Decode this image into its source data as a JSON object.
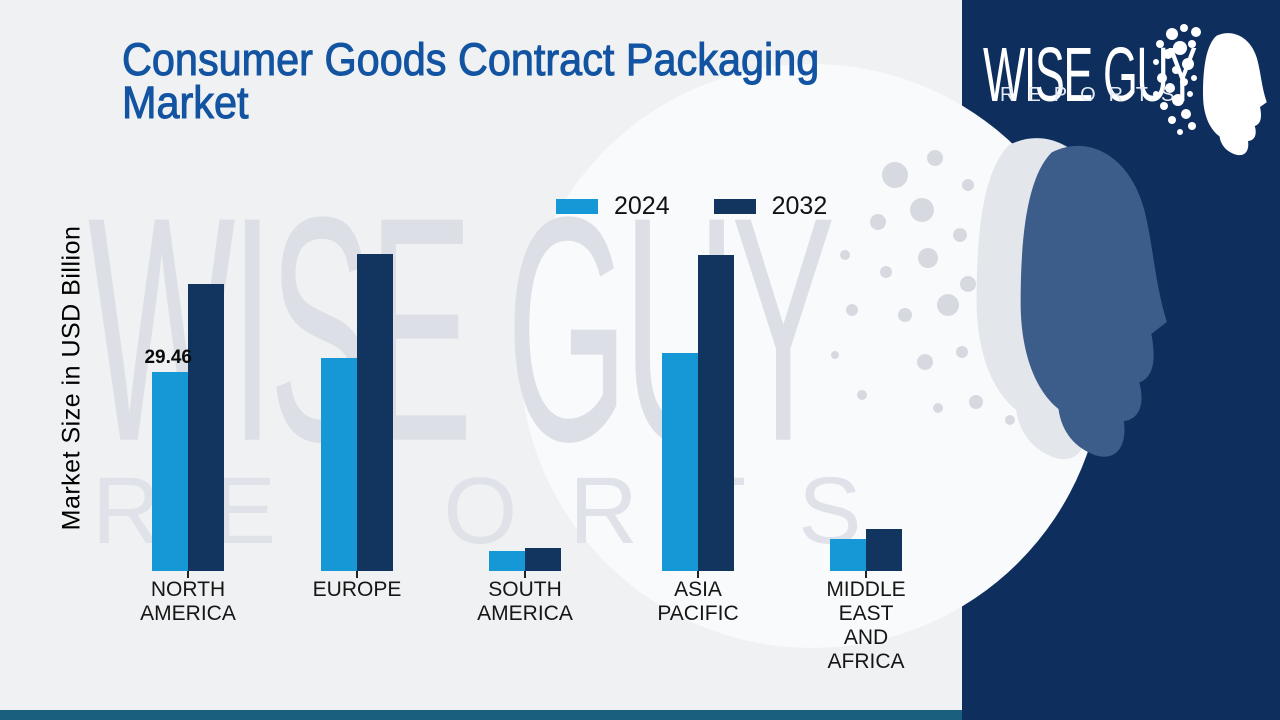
{
  "title": {
    "line1": "Consumer Goods Contract Packaging",
    "line2": "Market",
    "full": "Consumer Goods Contract Packaging Market"
  },
  "y_axis_label": "Market Size in USD Billion",
  "legend": [
    "2024",
    "2032"
  ],
  "logo": {
    "brand": "WISE GUY",
    "sub": "REPORTS"
  },
  "watermark": {
    "brand": "WISE GUY",
    "sub": "REPORTS"
  },
  "colors": {
    "bar_2024": "#1697d6",
    "bar_2032": "#123560",
    "navy_panel": "#0e2f5e",
    "face_profile": "#3c5c89",
    "footer_teal": "#1a607e",
    "title_blue": "#1254a2",
    "background": "#f0f1f2"
  },
  "chart_data": {
    "type": "bar",
    "title": "Consumer Goods Contract Packaging Market",
    "ylabel": "Market Size in USD Billion",
    "xlabel": "",
    "categories": [
      "NORTH AMERICA",
      "EUROPE",
      "SOUTH AMERICA",
      "ASIA PACIFIC",
      "MIDDLE EAST AND AFRICA"
    ],
    "categories_display": [
      [
        "NORTH",
        "AMERICA"
      ],
      [
        "EUROPE"
      ],
      [
        "SOUTH",
        "AMERICA"
      ],
      [
        "ASIA",
        "PACIFIC"
      ],
      [
        "MIDDLE",
        "EAST",
        "AND",
        "AFRICA"
      ]
    ],
    "series": [
      {
        "name": "2024",
        "color": "#1697d6",
        "values": [
          29.46,
          31.5,
          3.0,
          32.3,
          4.7
        ]
      },
      {
        "name": "2032",
        "color": "#123560",
        "values": [
          42.5,
          46.9,
          3.4,
          46.8,
          6.2
        ]
      }
    ],
    "annotations": [
      {
        "series": "2024",
        "category": "NORTH AMERICA",
        "text": "29.46"
      }
    ],
    "ylim": [
      0,
      50
    ],
    "grid": false,
    "legend_position": "top-center"
  }
}
